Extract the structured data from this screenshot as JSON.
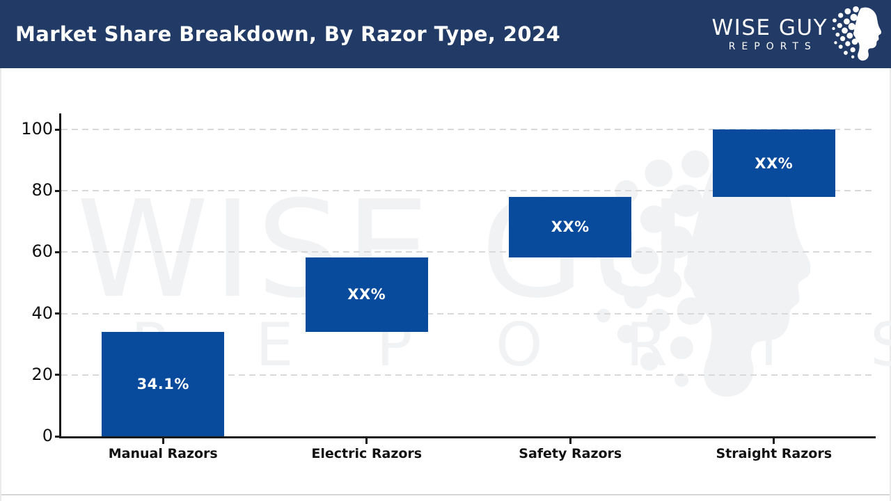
{
  "header": {
    "title": "Market Share Breakdown, By Razor Type, 2024",
    "background_color": "#213a66",
    "logo": {
      "name": "Wise Guy Reports logo",
      "line1": "WISE GUY",
      "line2": "REPORTS"
    }
  },
  "watermark": {
    "line1": "WISE GUY",
    "line2": "R E P O R T S",
    "color": "#f1f2f4"
  },
  "chart_data": {
    "type": "bar",
    "subtype": "floating-waterfall",
    "title": "Market Share Breakdown, By Razor Type, 2024",
    "categories": [
      "Manual Razors",
      "Electric Razors",
      "Safety Razors",
      "Straight Razors"
    ],
    "segments": [
      {
        "category": "Manual Razors",
        "start": 0,
        "end": 34.1,
        "label": "34.1%"
      },
      {
        "category": "Electric Razors",
        "start": 34.1,
        "end": 58.3,
        "label": "XX%"
      },
      {
        "category": "Safety Razors",
        "start": 58.3,
        "end": 78.0,
        "label": "XX%"
      },
      {
        "category": "Straight Razors",
        "start": 78.0,
        "end": 100.0,
        "label": "XX%"
      }
    ],
    "xlabel": "",
    "ylabel": "",
    "ylim": [
      0,
      100
    ],
    "yticks": [
      0,
      20,
      40,
      60,
      80,
      100
    ],
    "grid": "horizontal-dashed",
    "grid_color": "#d9d9d9",
    "axis_color": "#1a1a1a",
    "legend": "none",
    "bar_color": "#084a9c",
    "bar_label_color": "#ffffff"
  }
}
